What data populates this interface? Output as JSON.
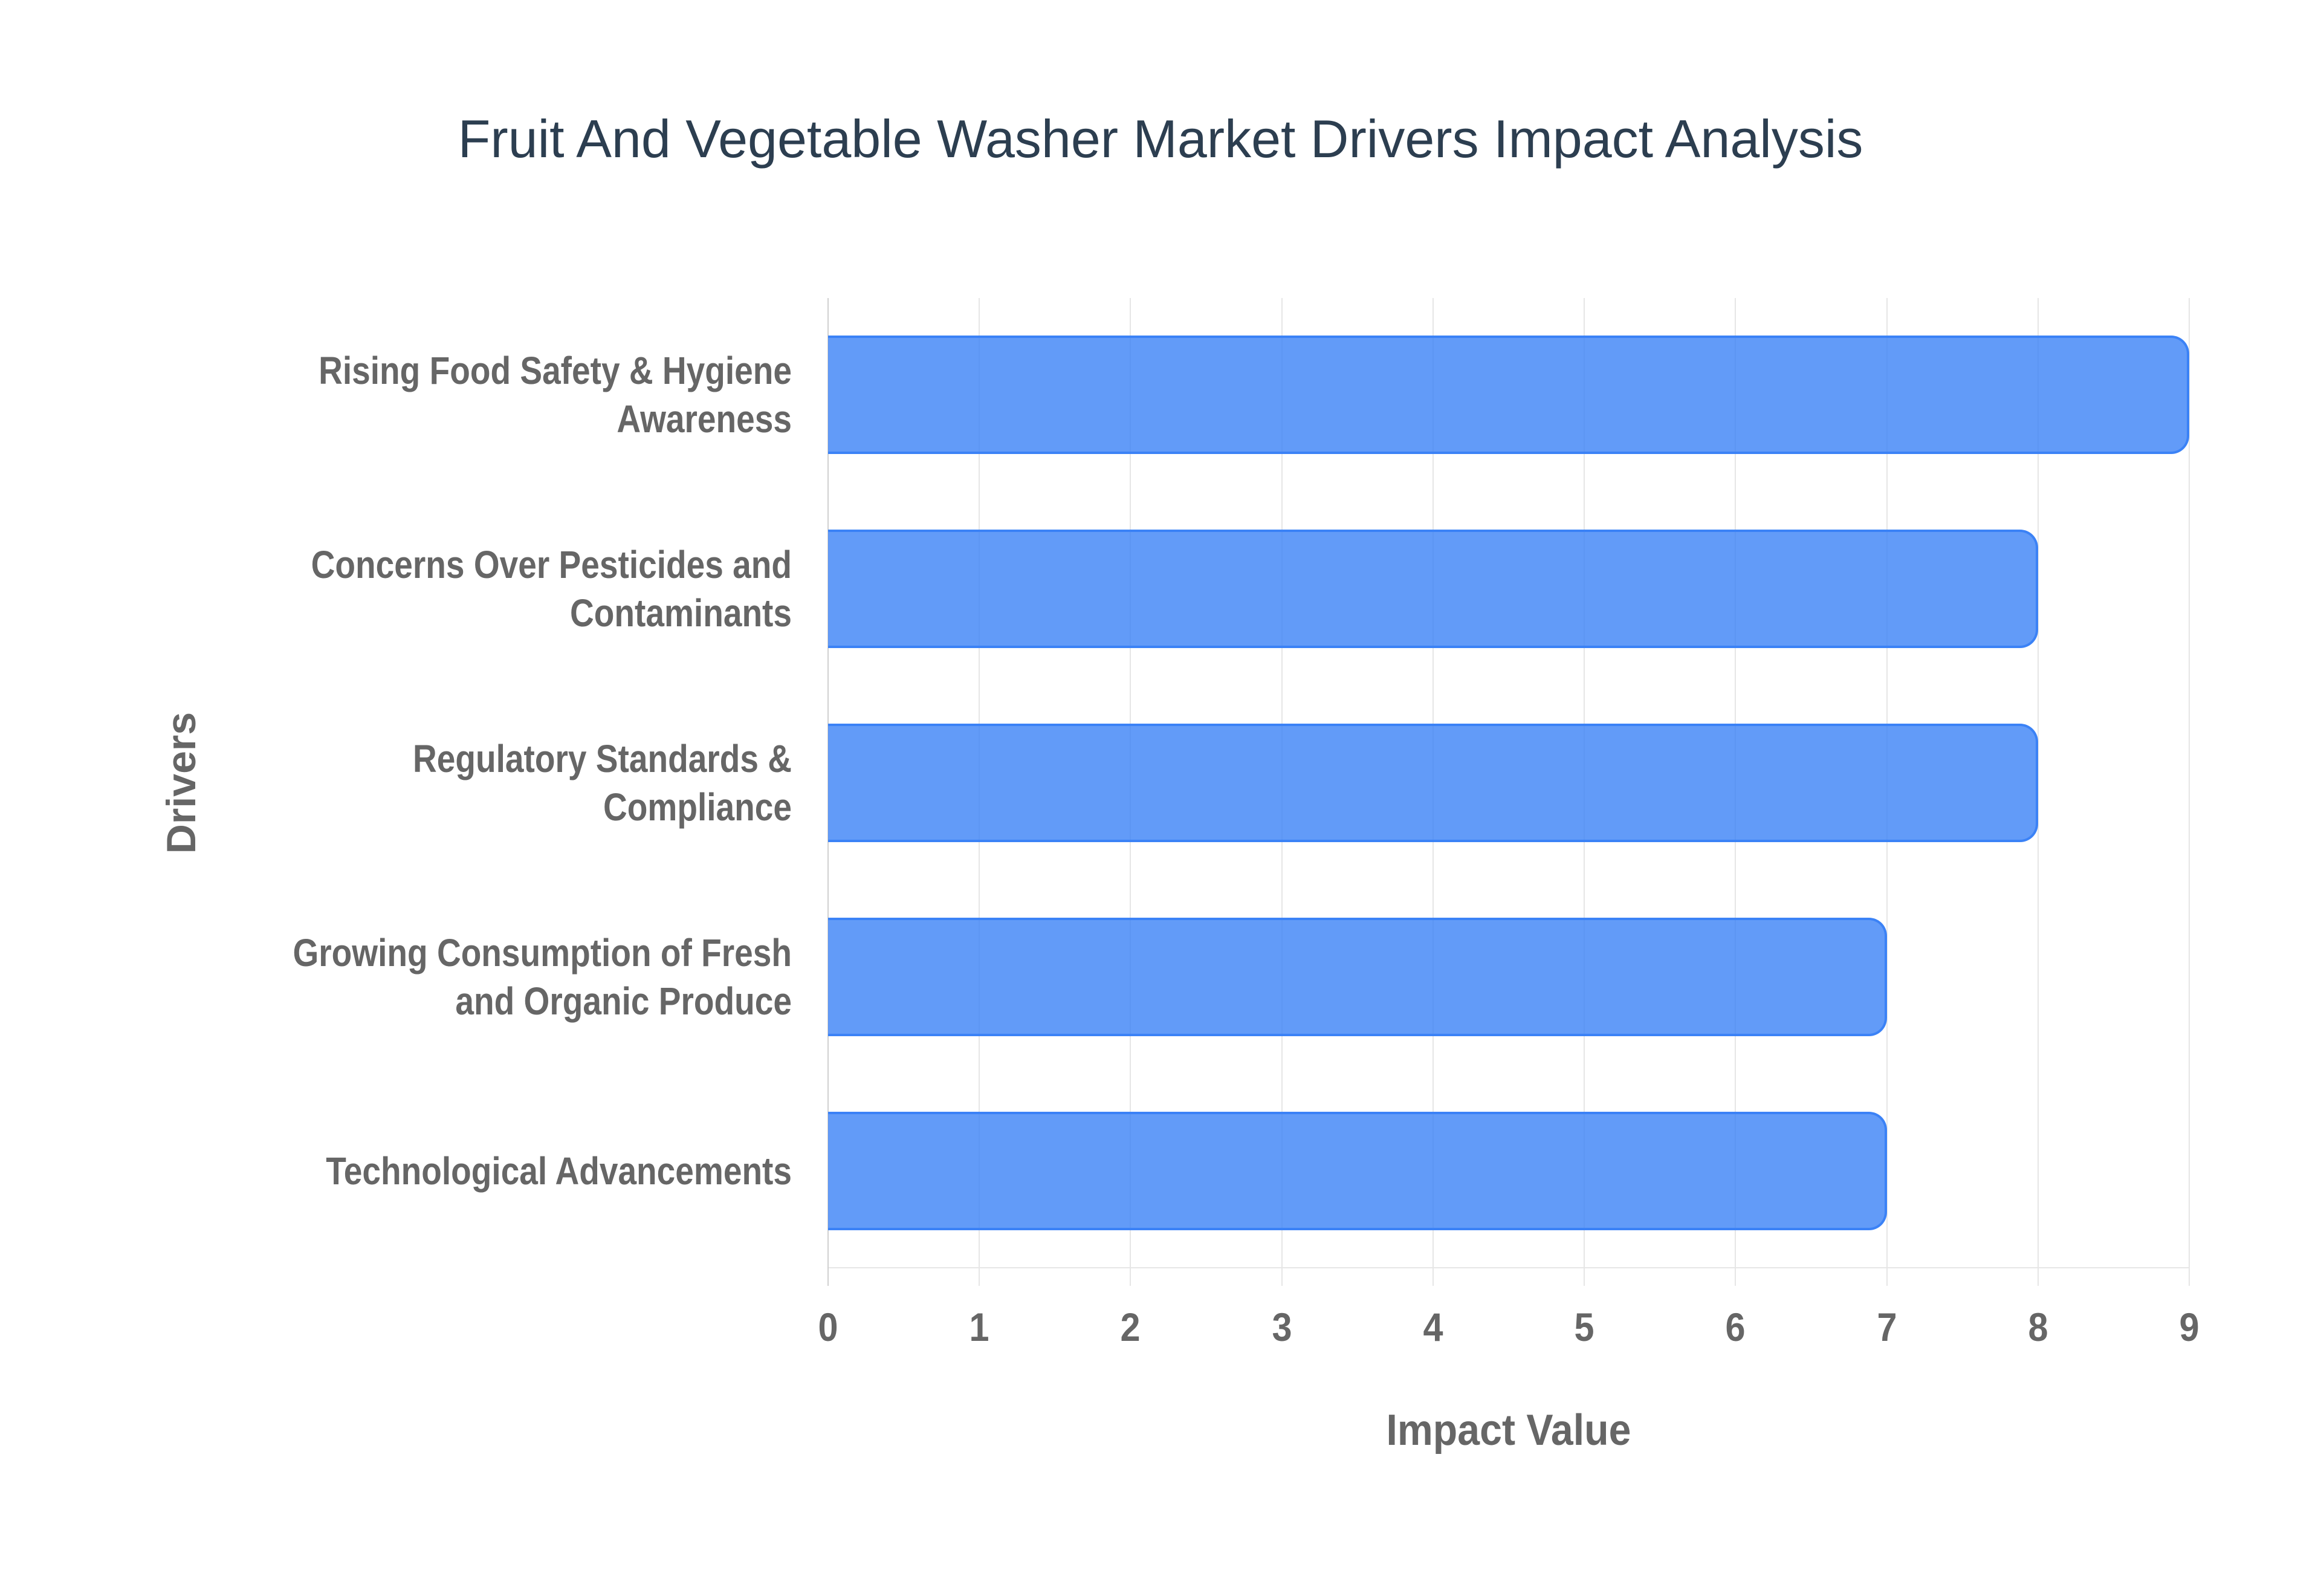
{
  "title": "Fruit And Vegetable Washer Market Drivers Impact Analysis",
  "colors": {
    "bar_fill": "#6199f5",
    "bar_border": "#3b82f6",
    "title": "#2c3e50",
    "axis_text": "#666666",
    "grid": "#e6e6e6"
  },
  "axes": {
    "x_title": "Impact Value",
    "y_title": "Drivers",
    "x_ticks": [
      "0",
      "1",
      "2",
      "3",
      "4",
      "5",
      "6",
      "7",
      "8",
      "9"
    ]
  },
  "categories": [
    {
      "label": "Rising Food Safety & Hygiene\nAwareness",
      "value": 9
    },
    {
      "label": "Concerns Over Pesticides and\nContaminants",
      "value": 8
    },
    {
      "label": "Regulatory Standards &\nCompliance",
      "value": 8
    },
    {
      "label": "Growing Consumption of Fresh\nand Organic Produce",
      "value": 7
    },
    {
      "label": "Technological Advancements",
      "value": 7
    }
  ],
  "chart_data": {
    "type": "bar",
    "orientation": "horizontal",
    "title": "Fruit And Vegetable Washer Market Drivers Impact Analysis",
    "categories": [
      "Rising Food Safety & Hygiene Awareness",
      "Concerns Over Pesticides and Contaminants",
      "Regulatory Standards & Compliance",
      "Growing Consumption of Fresh and Organic Produce",
      "Technological Advancements"
    ],
    "values": [
      9,
      8,
      8,
      7,
      7
    ],
    "xlabel": "Impact Value",
    "ylabel": "Drivers",
    "xlim": [
      0,
      9
    ],
    "x_ticks": [
      0,
      1,
      2,
      3,
      4,
      5,
      6,
      7,
      8,
      9
    ],
    "grid": {
      "vertical": true,
      "horizontal": false
    },
    "legend": null,
    "bar_color": "#3b82f6"
  }
}
